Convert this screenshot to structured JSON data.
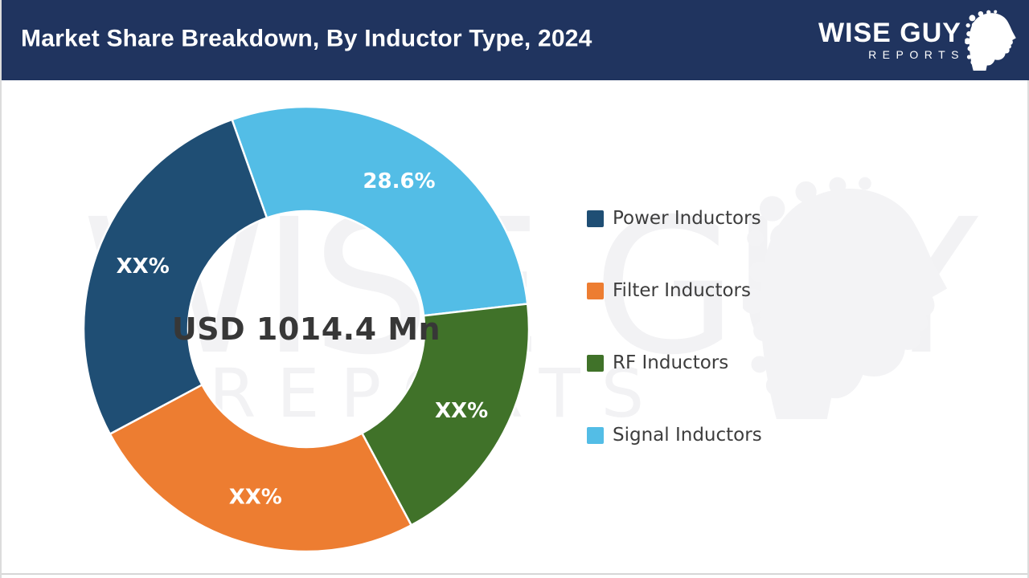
{
  "header": {
    "title": "Market Share Breakdown, By Inductor Type, 2024",
    "background_color": "#20345f",
    "logo": {
      "line1": "WISE GUY",
      "line2": "REPORTS"
    }
  },
  "watermark": {
    "line1": "WISE GUY",
    "line2": "REPORTS"
  },
  "chart_data": {
    "type": "pie",
    "subtype": "donut",
    "title": "Market Share Breakdown, By Inductor Type, 2024",
    "center_label": "USD 1014.4 Mn",
    "legend_position": "right",
    "start_angle_deg": -19.5,
    "inner_radius_ratio": 0.53,
    "draw_order": [
      3,
      2,
      1,
      0
    ],
    "segments": [
      {
        "name": "Power Inductors",
        "value": 27.4,
        "display_label": "XX%",
        "color": "#1f4e74"
      },
      {
        "name": "Filter Inductors",
        "value": 25.0,
        "display_label": "XX%",
        "color": "#ed7d31"
      },
      {
        "name": "RF Inductors",
        "value": 19.0,
        "display_label": "XX%",
        "color": "#407229"
      },
      {
        "name": "Signal Inductors",
        "value": 28.6,
        "display_label": "28.6%",
        "color": "#53bde6"
      }
    ]
  }
}
